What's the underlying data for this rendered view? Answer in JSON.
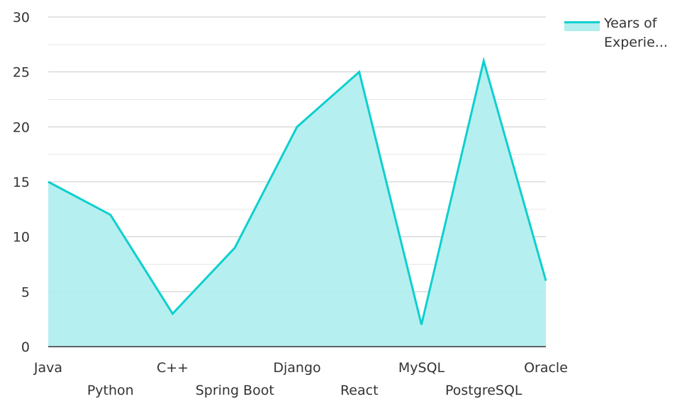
{
  "chart_data": {
    "type": "area",
    "categories": [
      "Java",
      "Python",
      "C++",
      "Spring Boot",
      "Django",
      "React",
      "MySQL",
      "PostgreSQL",
      "Oracle"
    ],
    "series": [
      {
        "name": "Years of Experie...",
        "values": [
          15,
          12,
          3,
          9,
          20,
          25,
          2,
          26,
          6
        ]
      }
    ],
    "ylim": [
      0,
      30
    ],
    "yticks": [
      0,
      5,
      10,
      15,
      20,
      25,
      30
    ],
    "grid": true,
    "legend": "top-right",
    "colors": {
      "line": "#0ecfcf",
      "fill": "#b2eeee"
    }
  },
  "legend": {
    "line1": "Years of",
    "line2": "Experie..."
  }
}
